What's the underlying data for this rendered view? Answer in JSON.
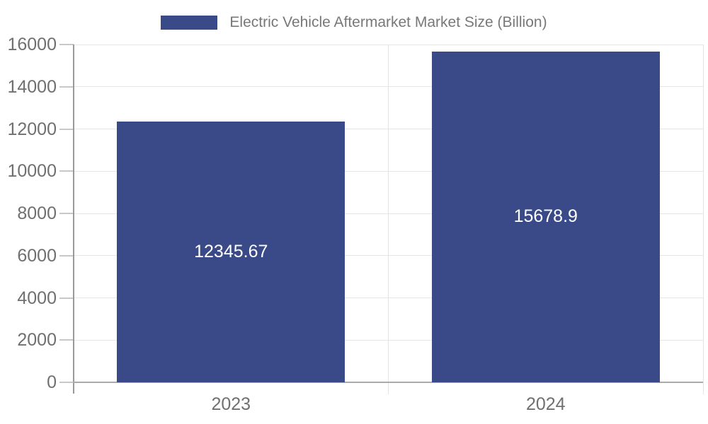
{
  "legend": {
    "label": "Electric Vehicle Aftermarket Market Size (Billion)",
    "swatch_color": "#3a4a88"
  },
  "chart_data": {
    "type": "bar",
    "title": "Electric Vehicle Aftermarket Market Size (Billion)",
    "categories": [
      "2023",
      "2024"
    ],
    "values": [
      12345.67,
      15678.9
    ],
    "value_labels": [
      "12345.67",
      "15678.9"
    ],
    "series": [
      {
        "name": "Electric Vehicle Aftermarket Market Size (Billion)",
        "values": [
          12345.67,
          15678.9
        ],
        "color": "#3a4a88"
      }
    ],
    "xlabel": "",
    "ylabel": "",
    "ylim": [
      0,
      16000
    ],
    "yticks": [
      0,
      2000,
      4000,
      6000,
      8000,
      10000,
      12000,
      14000,
      16000
    ],
    "ytick_labels": [
      "0",
      "2000",
      "4000",
      "6000",
      "8000",
      "10000",
      "12000",
      "14000",
      "16000"
    ],
    "grid": true,
    "legend_position": "top-center",
    "value_label_color": "#ffffff",
    "axis_text_color": "#707070"
  }
}
